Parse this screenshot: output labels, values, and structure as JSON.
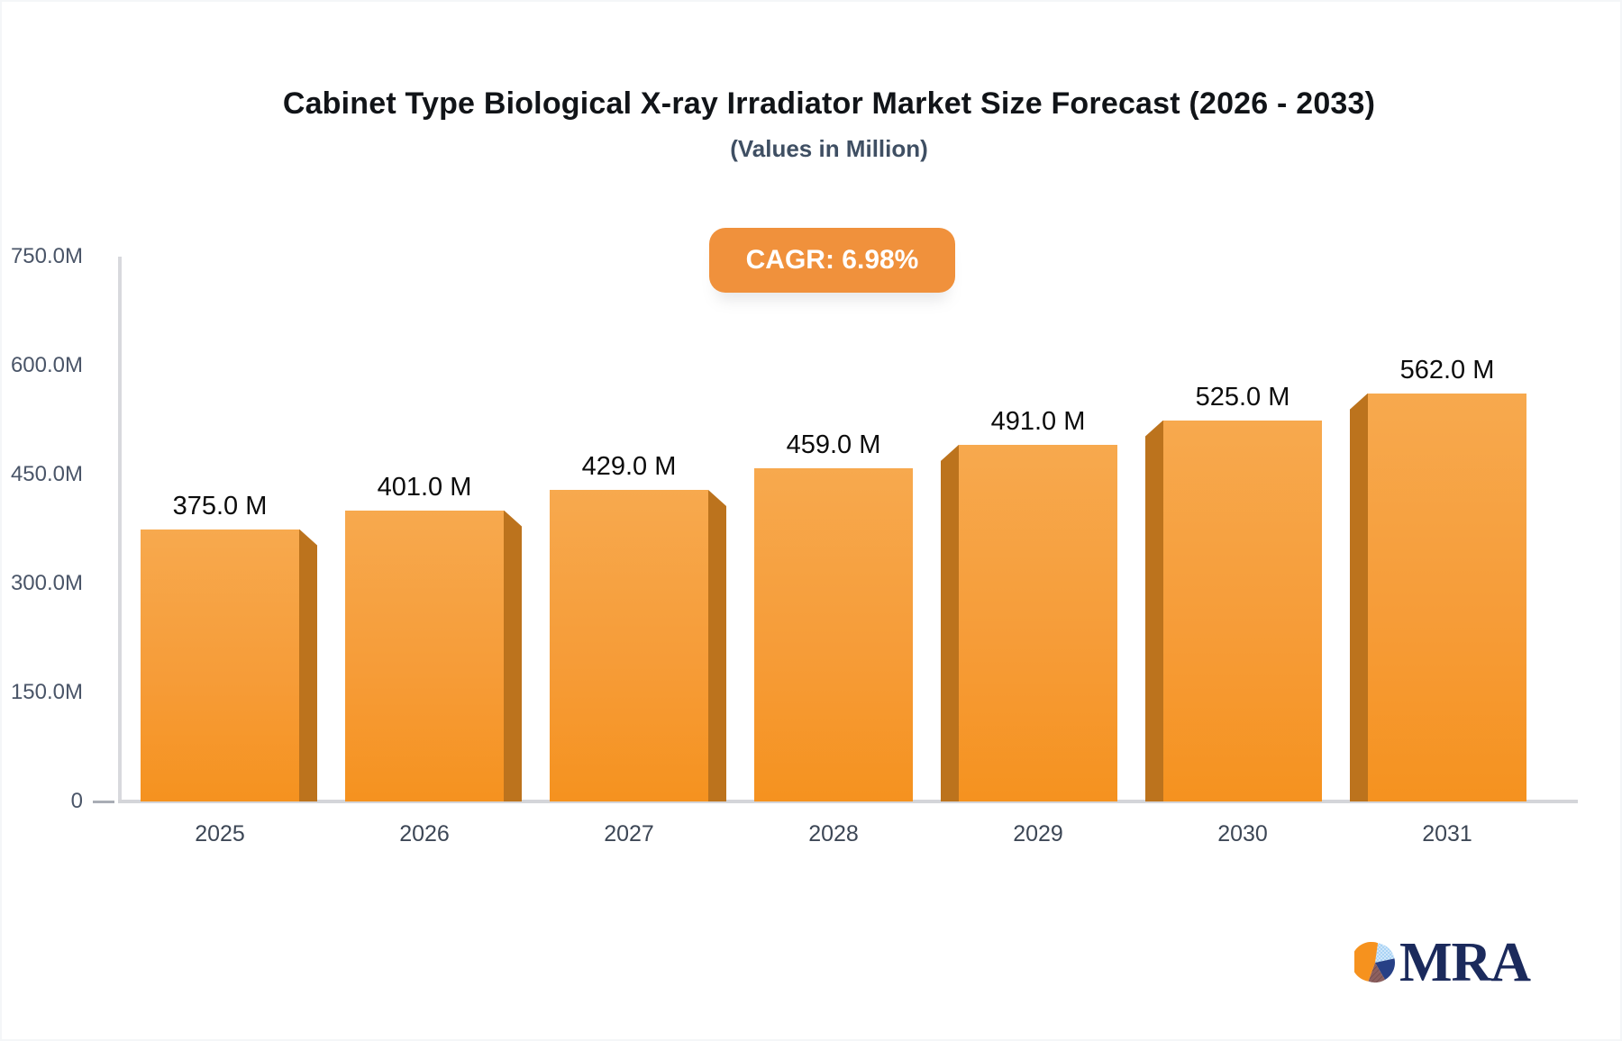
{
  "header": {
    "title": "Cabinet Type Biological X-ray Irradiator Market Size Forecast (2026 - 2033)",
    "subtitle": "(Values in Million)"
  },
  "badge": {
    "label": "CAGR: 6.98%",
    "bg_color": "#F0913C",
    "text_color": "#FFFFFF"
  },
  "chart_data": {
    "type": "bar",
    "title": "Cabinet Type Biological X-ray Irradiator Market Size Forecast (2026 - 2033)",
    "subtitle": "(Values in Million)",
    "unit": "Million",
    "categories": [
      "2025",
      "2026",
      "2027",
      "2028",
      "2029",
      "2030",
      "2031"
    ],
    "values": [
      375,
      401,
      429,
      459,
      491,
      525,
      562
    ],
    "value_labels": [
      "375.0 M",
      "401.0 M",
      "429.0 M",
      "459.0 M",
      "491.0 M",
      "525.0 M",
      "562.0 M"
    ],
    "y_ticks": [
      {
        "label": "750.0M",
        "value": 750
      },
      {
        "label": "600.0M",
        "value": 600
      },
      {
        "label": "450.0M",
        "value": 450
      },
      {
        "label": "300.0M",
        "value": 300
      },
      {
        "label": "150.0M",
        "value": 150
      },
      {
        "label": "0",
        "value": 0
      }
    ],
    "ylim": [
      0,
      750
    ],
    "grid": false,
    "legend": false,
    "bar_colors": {
      "front_top": "#F7A94E",
      "front_bottom": "#F5921F",
      "side": "#BC731D"
    },
    "effect": "3d-bevel-toward-center"
  },
  "logo": {
    "text": "MRA",
    "text_color": "#1B2A5C",
    "pie_colors": {
      "orange": "#F6921E",
      "light_blue": "#A9D3F5",
      "navy": "#274086",
      "maroon": "#8C6060"
    }
  }
}
